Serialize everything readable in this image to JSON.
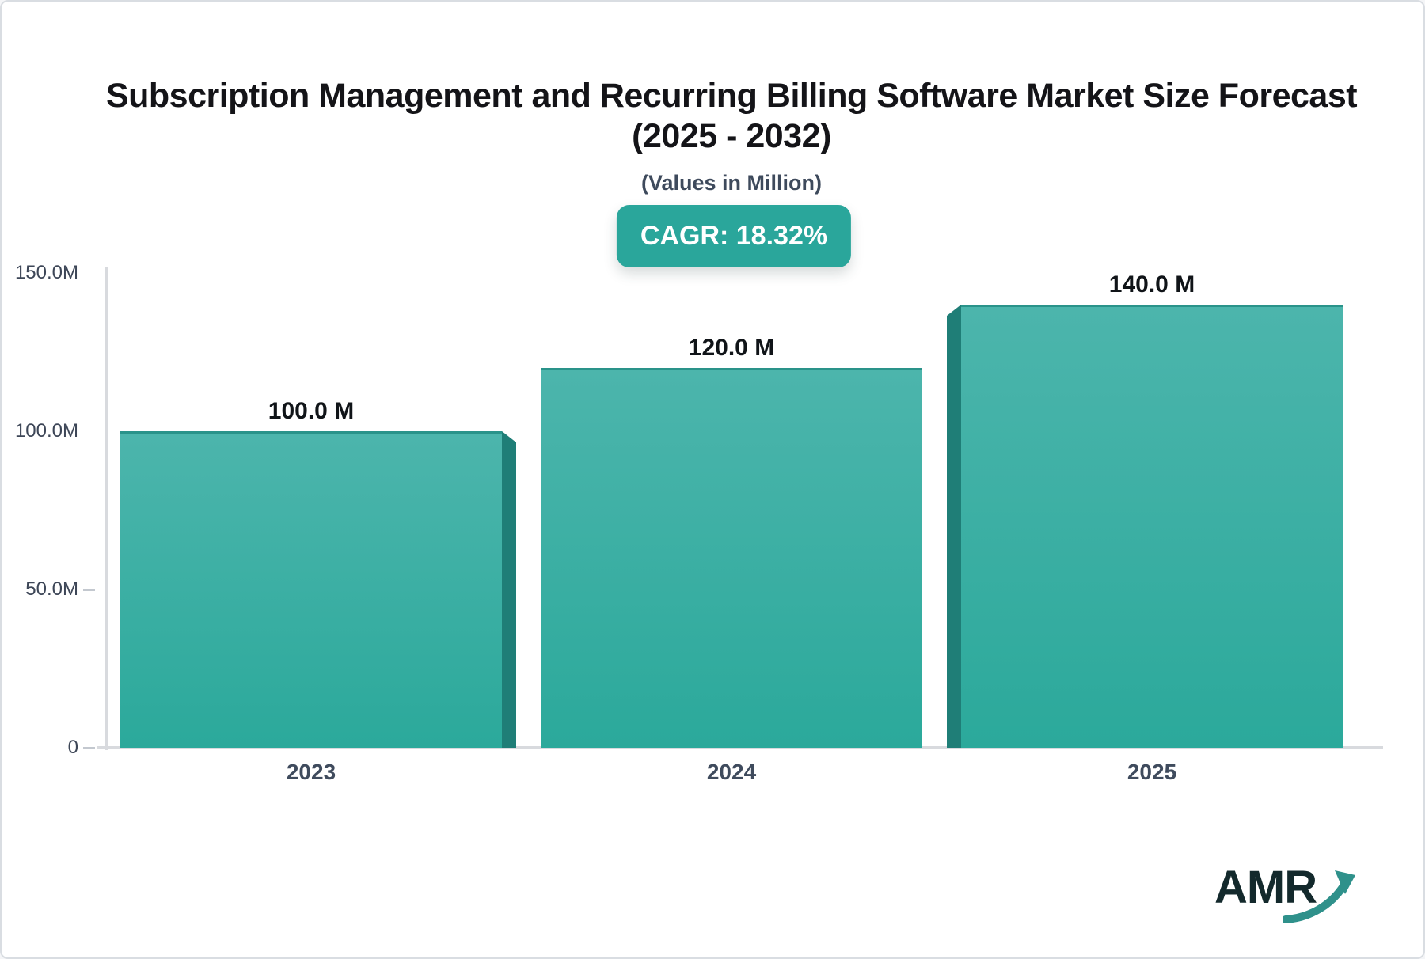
{
  "page": {
    "background": "#ffffff",
    "border_color": "#d9dde2"
  },
  "header": {
    "title_line1": "Subscription Management and Recurring Billing Software Market Size Forecast",
    "title_line2": "(2025 - 2032)",
    "subtitle": "(Values in Million)",
    "cagr_badge": "CAGR: 18.32%"
  },
  "chart_data": {
    "type": "bar",
    "title": "Subscription Management and Recurring Billing Software Market Size Forecast (2025 - 2032)",
    "subtitle": "(Values in Million)",
    "unit": "Million",
    "cagr_percent": 18.32,
    "categories": [
      "2023",
      "2024",
      "2025"
    ],
    "values": [
      100,
      120,
      140
    ],
    "value_labels": [
      "100.0 M",
      "120.0 M",
      "140.0 M"
    ],
    "ylim": [
      0,
      150
    ],
    "yticks": [
      {
        "label": "150.0M",
        "value": 150,
        "dash": false
      },
      {
        "label": "100.0M",
        "value": 100,
        "dash": false
      },
      {
        "label": "50.0M",
        "value": 50,
        "dash": true
      },
      {
        "label": "0",
        "value": 0,
        "dash": true
      }
    ],
    "grid": false,
    "legend": "none",
    "bar_style": "3d-extruded-teal-gradient"
  },
  "colors": {
    "accent": "#2aa69b",
    "bar_gradient_top": "#4cb5ac",
    "bar_gradient_bottom": "#2ba99b",
    "bar_side_face": "#1f7e77",
    "bar_top_edge": "#2a938a",
    "axis_line": "#d8dade",
    "title_text": "#141418",
    "subtitle_text": "#3e4a5c",
    "axis_text": "#3d4657",
    "logo_text": "#13292c",
    "logo_arrow": "#2f918b"
  },
  "logo": {
    "text": "AMR",
    "icon": "growth-arrow"
  }
}
